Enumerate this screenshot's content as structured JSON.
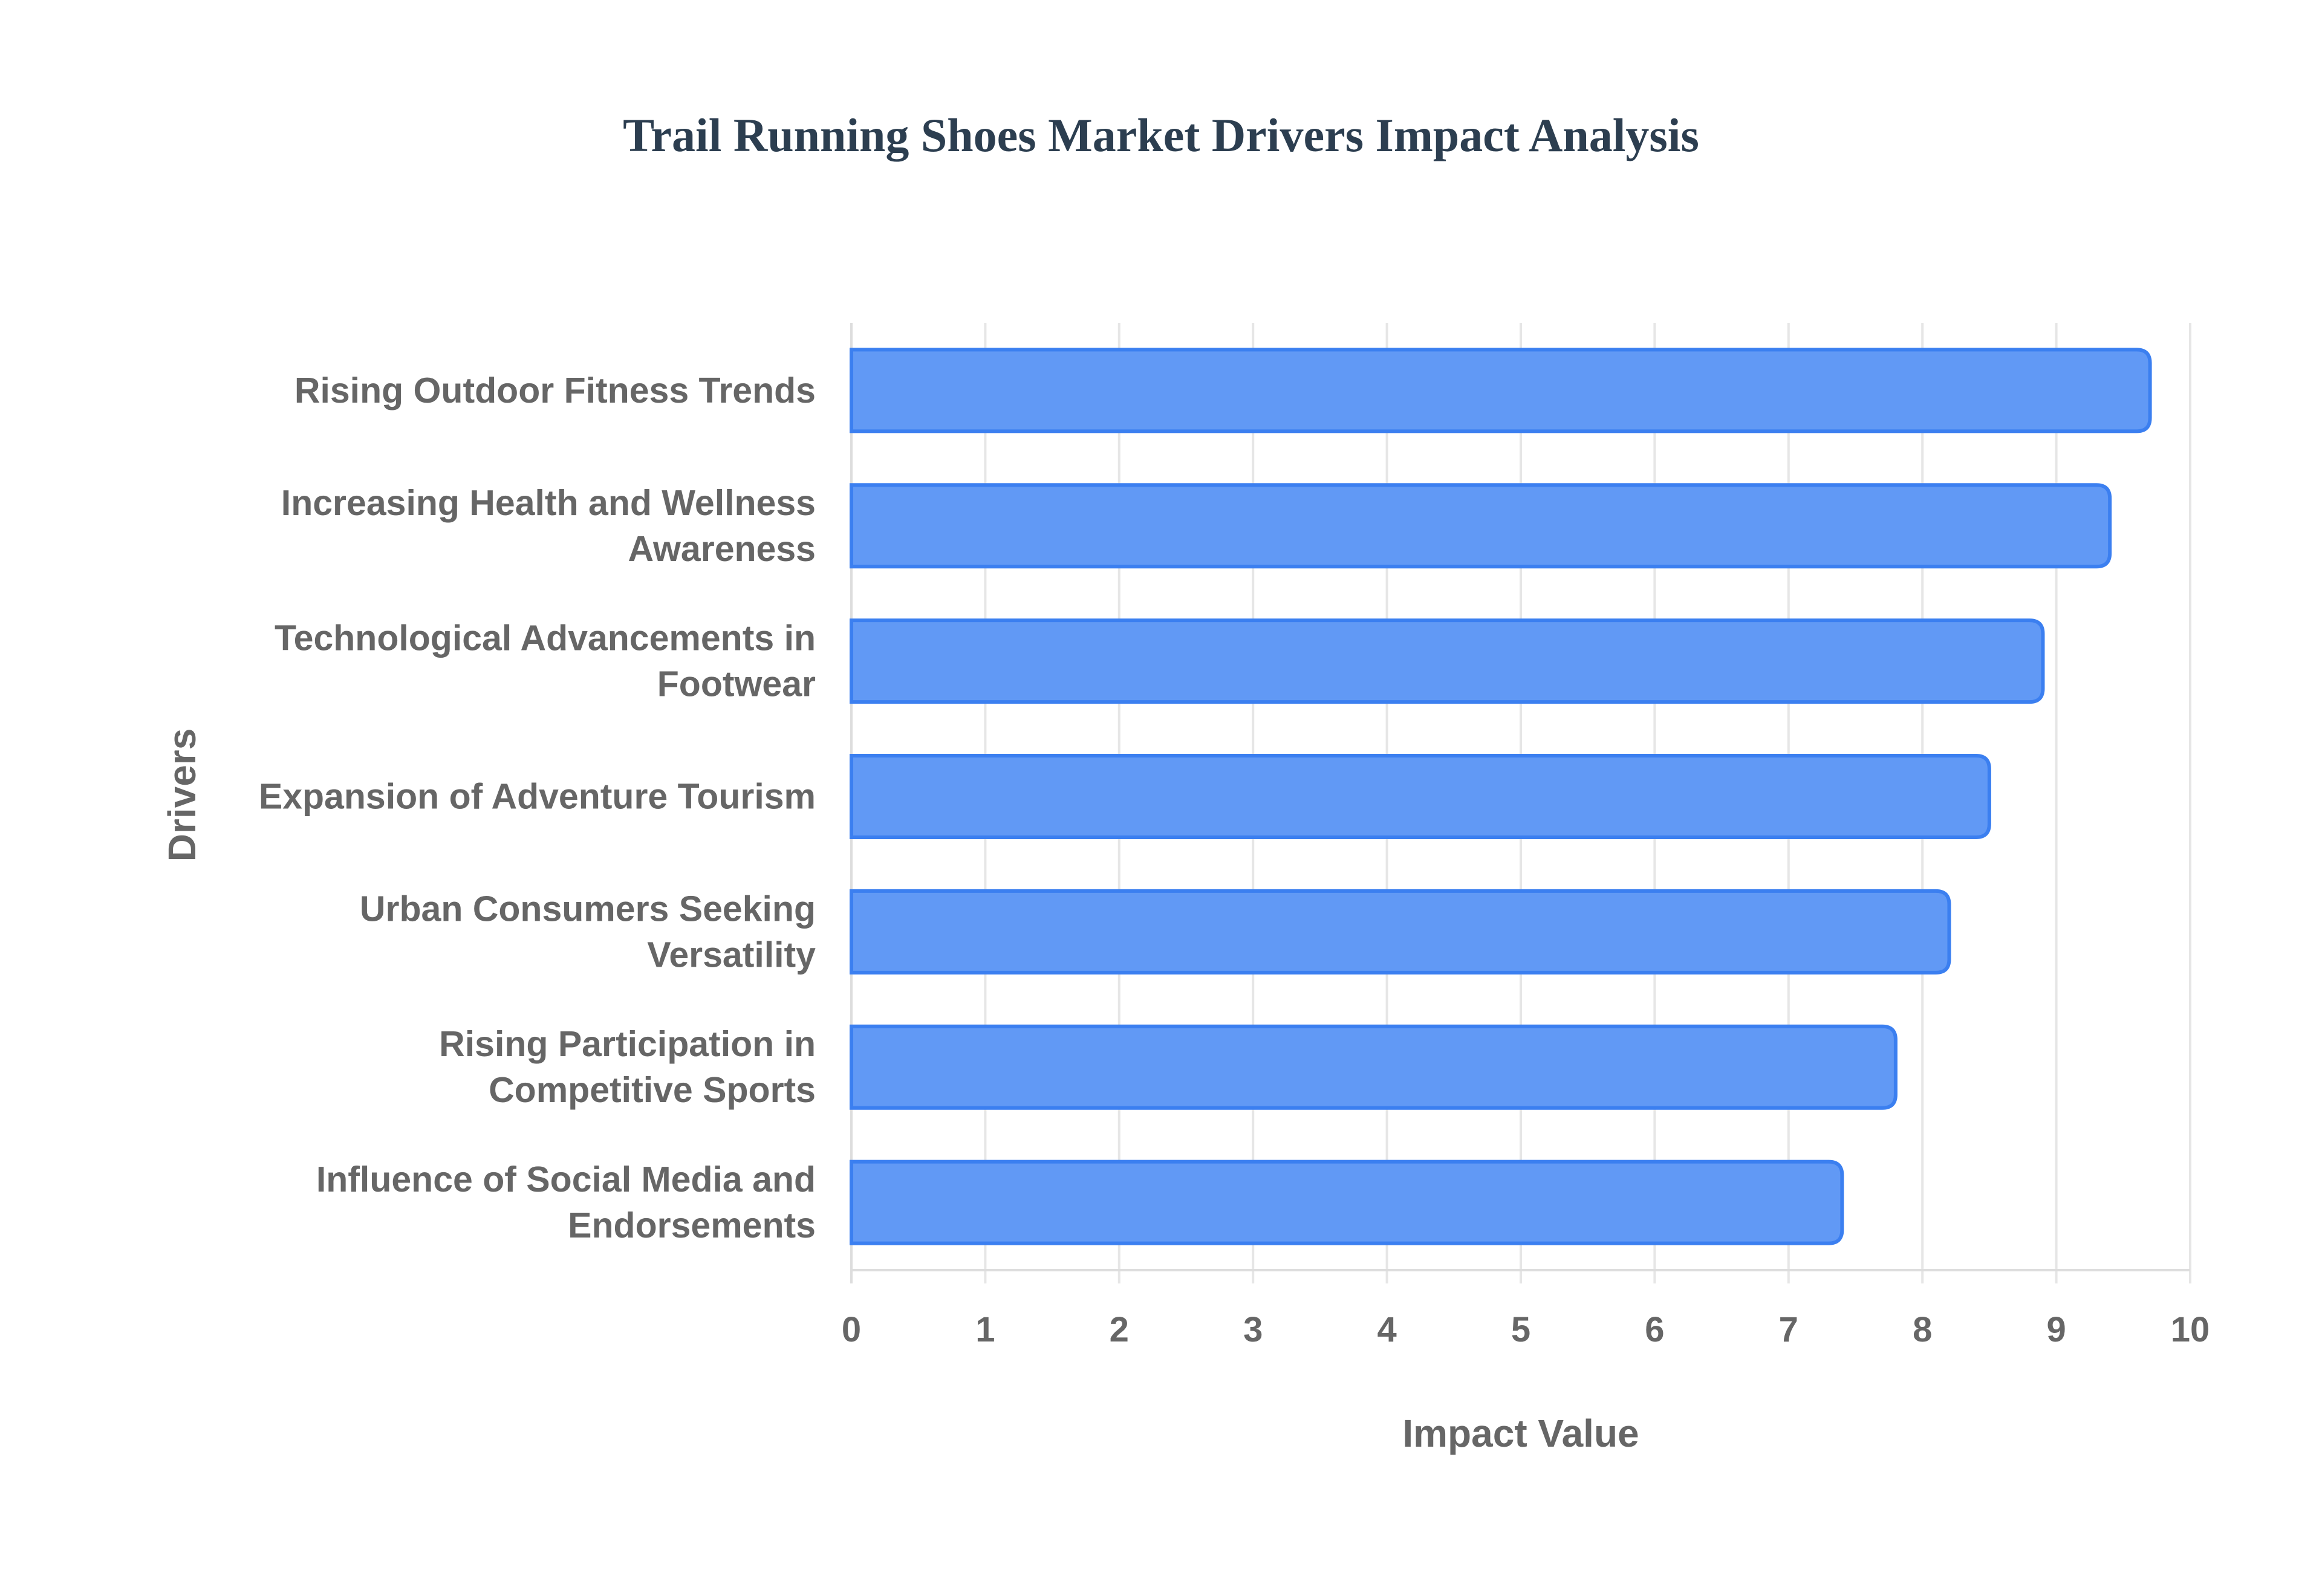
{
  "chart_data": {
    "type": "bar",
    "orientation": "horizontal",
    "title": "Trail Running Shoes Market Drivers Impact Analysis",
    "xlabel": "Impact Value",
    "ylabel": "Drivers",
    "xlim": [
      0,
      10
    ],
    "xticks": [
      "0",
      "1",
      "2",
      "3",
      "4",
      "5",
      "6",
      "7",
      "8",
      "9",
      "10"
    ],
    "grid": true,
    "categories": [
      [
        "Rising Outdoor Fitness Trends"
      ],
      [
        "Increasing Health and Wellness",
        "Awareness"
      ],
      [
        "Technological Advancements in",
        "Footwear"
      ],
      [
        "Expansion of Adventure Tourism"
      ],
      [
        "Urban Consumers Seeking",
        "Versatility"
      ],
      [
        "Rising Participation in",
        "Competitive Sports"
      ],
      [
        "Influence of Social Media and",
        "Endorsements"
      ]
    ],
    "values": [
      9.7,
      9.4,
      8.9,
      8.5,
      8.2,
      7.8,
      7.4
    ],
    "colors": {
      "fill": "#6199f5",
      "stroke": "#3b7ff0",
      "grid": "#e6e6e6",
      "axis": "#dddddd"
    }
  }
}
